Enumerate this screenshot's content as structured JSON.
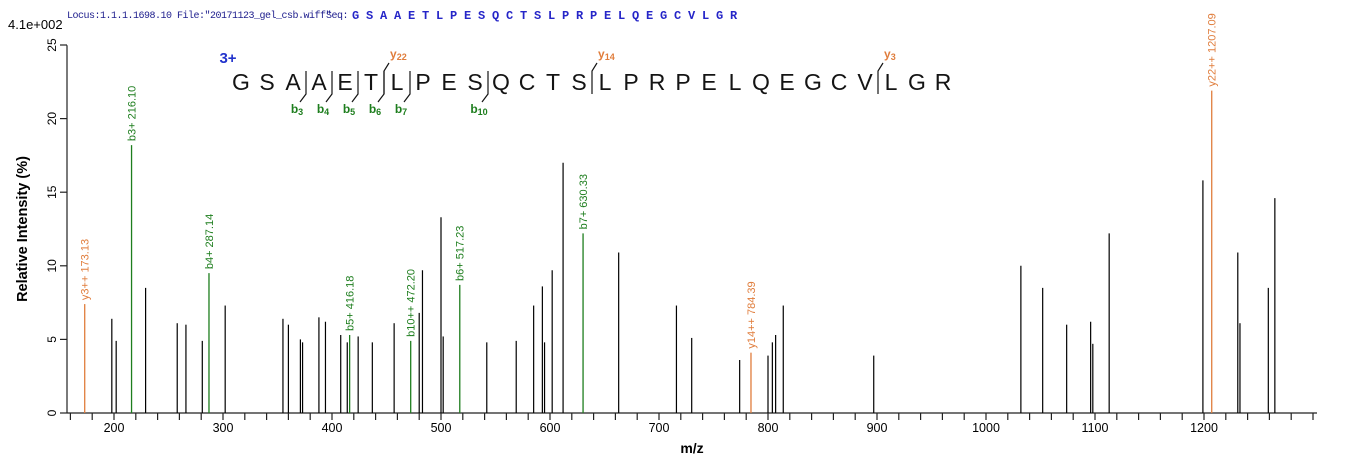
{
  "header": {
    "max_intensity": "4.1e+002",
    "locus_file": "Locus:1.1.1.1698.10 File:\"20171123_gel_csb.wiff\"",
    "seq_label": "Seq:",
    "sequence": "GSAAETLPESQCTSLPRPELQEGCVLGR"
  },
  "peptide_ladder": {
    "charge_label": "3+",
    "residues": [
      "G",
      "S",
      "A",
      "A",
      "E",
      "T",
      "L",
      "P",
      "E",
      "S",
      "Q",
      "C",
      "T",
      "S",
      "L",
      "P",
      "R",
      "P",
      "E",
      "L",
      "Q",
      "E",
      "G",
      "C",
      "V",
      "L",
      "G",
      "R"
    ],
    "b_marks": [
      {
        "after_residue": 3,
        "ion": "b",
        "number": "3"
      },
      {
        "after_residue": 4,
        "ion": "b",
        "number": "4"
      },
      {
        "after_residue": 5,
        "ion": "b",
        "number": "5"
      },
      {
        "after_residue": 6,
        "ion": "b",
        "number": "6"
      },
      {
        "after_residue": 7,
        "ion": "b",
        "number": "7"
      },
      {
        "after_residue": 10,
        "ion": "b",
        "number": "10"
      }
    ],
    "y_marks": [
      {
        "after_residue": 6,
        "ion": "y",
        "number": "22"
      },
      {
        "after_residue": 14,
        "ion": "y",
        "number": "14"
      },
      {
        "after_residue": 25,
        "ion": "y",
        "number": "3"
      }
    ]
  },
  "colors": {
    "peak_black": "#000000",
    "b_ion_green": "#1e7e1e",
    "y_ion_orange": "#e07d3c",
    "axis": "#222222",
    "header_navy": "#20208e",
    "sequence_blue": "#2525c8",
    "charge_blue": "#2233cc",
    "ladder_text": "#141414"
  },
  "chart_data": {
    "type": "bar",
    "subtype": "centroid-mass-spectrum",
    "title": "",
    "xlabel": "m/z",
    "ylabel": "Relative  Intensity (%)",
    "xlim": [
      157,
      1303
    ],
    "ylim": [
      0,
      25
    ],
    "x_axis": {
      "first_tick": 160,
      "last_tick": 1300,
      "minor_tick_step": 20,
      "labeled_ticks": [
        200,
        300,
        400,
        500,
        600,
        700,
        800,
        900,
        1000,
        1100,
        1200
      ]
    },
    "y_ticks": [
      0,
      5,
      10,
      15,
      20,
      25
    ],
    "grid": false,
    "max_intensity_label": "4.1e+002",
    "series": [
      {
        "name": "unassigned-peaks",
        "color_key": "peak_black",
        "points": [
          [
            198,
            6.4
          ],
          [
            202,
            4.9
          ],
          [
            229,
            8.5
          ],
          [
            258,
            6.1
          ],
          [
            266,
            6.0
          ],
          [
            281,
            4.9
          ],
          [
            302,
            7.3
          ],
          [
            355,
            6.4
          ],
          [
            360,
            6.0
          ],
          [
            371,
            5.0
          ],
          [
            373,
            4.8
          ],
          [
            388,
            6.5
          ],
          [
            394,
            6.2
          ],
          [
            408,
            5.3
          ],
          [
            414,
            4.8
          ],
          [
            424,
            5.2
          ],
          [
            437,
            4.8
          ],
          [
            457,
            6.1
          ],
          [
            480,
            6.8
          ],
          [
            483,
            9.7
          ],
          [
            500,
            13.3
          ],
          [
            502,
            5.2
          ],
          [
            542,
            4.8
          ],
          [
            569,
            4.9
          ],
          [
            585,
            7.3
          ],
          [
            593,
            8.6
          ],
          [
            595,
            4.8
          ],
          [
            602,
            9.7
          ],
          [
            612,
            17.0
          ],
          [
            663,
            10.9
          ],
          [
            716,
            7.3
          ],
          [
            730,
            5.1
          ],
          [
            774,
            3.6
          ],
          [
            800,
            3.9
          ],
          [
            804,
            4.8
          ],
          [
            807,
            5.3
          ],
          [
            814,
            7.3
          ],
          [
            897,
            3.9
          ],
          [
            1032,
            10.0
          ],
          [
            1052,
            8.5
          ],
          [
            1074,
            6.0
          ],
          [
            1096,
            6.2
          ],
          [
            1098,
            4.7
          ],
          [
            1113,
            12.2
          ],
          [
            1199,
            15.8
          ],
          [
            1231,
            10.9
          ],
          [
            1233,
            6.1
          ],
          [
            1259,
            8.5
          ],
          [
            1265,
            14.6
          ]
        ]
      },
      {
        "name": "b-ions",
        "color_key": "b_ion_green",
        "points": [
          {
            "mz": 216.1,
            "intensity": 18.2,
            "label": "b3+ 216.10"
          },
          {
            "mz": 287.14,
            "intensity": 9.5,
            "label": "b4+ 287.14"
          },
          {
            "mz": 416.18,
            "intensity": 5.3,
            "label": "b5+ 416.18"
          },
          {
            "mz": 472.2,
            "intensity": 4.9,
            "label": "b10++ 472.20"
          },
          {
            "mz": 517.23,
            "intensity": 8.7,
            "label": "b6+ 517.23"
          },
          {
            "mz": 630.33,
            "intensity": 12.2,
            "label": "b7+ 630.33"
          }
        ]
      },
      {
        "name": "y-ions",
        "color_key": "y_ion_orange",
        "points": [
          {
            "mz": 173.13,
            "intensity": 7.4,
            "label": "y3++ 173.13"
          },
          {
            "mz": 784.39,
            "intensity": 4.1,
            "label": "y14++ 784.39"
          },
          {
            "mz": 1207.09,
            "intensity": 21.9,
            "label": "y22++ 1207.09"
          }
        ]
      }
    ]
  }
}
